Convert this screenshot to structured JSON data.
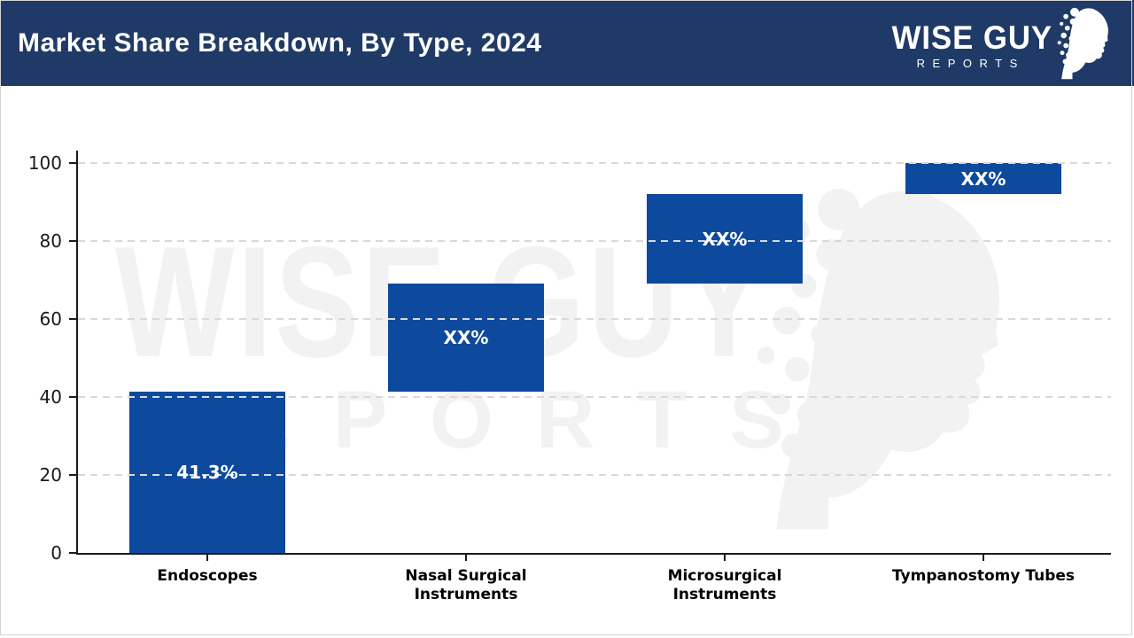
{
  "header": {
    "title": "Market Share Breakdown, By Type, 2024",
    "logo": {
      "line1": "WISE GUY",
      "line2": "REPORTS"
    }
  },
  "watermark": {
    "line1": "WISE GUY",
    "line2": "REPORTS"
  },
  "colors": {
    "header_bg": "#1f3a66",
    "bar": "#0d4a9e",
    "bar_label": "#ffffff",
    "grid": "#d9d9d9",
    "axis": "#1a1a1a",
    "watermark": "#f2f2f2"
  },
  "chart_data": {
    "type": "bar",
    "subtype": "waterfall",
    "title": "Market Share Breakdown, By Type, 2024",
    "xlabel": "",
    "ylabel": "",
    "ylim": [
      0,
      100
    ],
    "yticks": [
      0,
      20,
      40,
      60,
      80,
      100
    ],
    "grid": "horizontal-dashed",
    "legend": "none",
    "categories": [
      "Endoscopes",
      "Nasal Surgical Instruments",
      "Microsurgical Instruments",
      "Tympanostomy Tubes"
    ],
    "segments": [
      {
        "category": "Endoscopes",
        "start": 0,
        "end": 41.3,
        "label": "41.3%"
      },
      {
        "category": "Nasal Surgical Instruments",
        "start": 41.3,
        "end": 69,
        "label": "XX%"
      },
      {
        "category": "Microsurgical Instruments",
        "start": 69,
        "end": 92,
        "label": "XX%"
      },
      {
        "category": "Tympanostomy Tubes",
        "start": 92,
        "end": 100,
        "label": "XX%"
      }
    ]
  }
}
